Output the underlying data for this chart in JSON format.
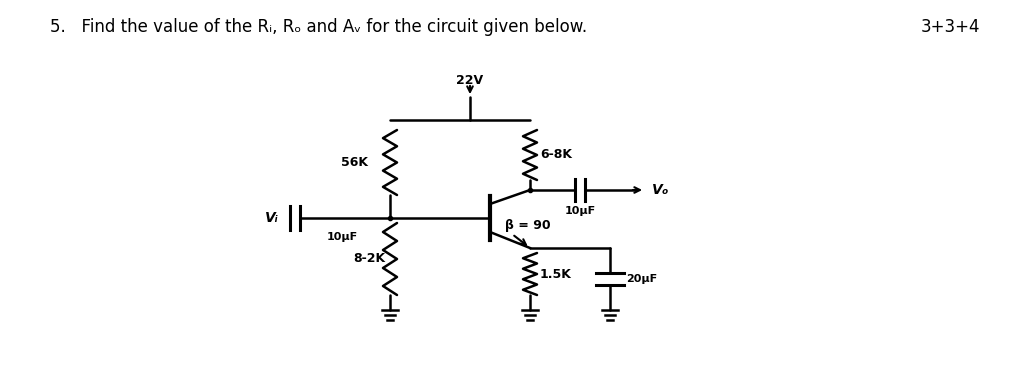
{
  "bg_color": "#ffffff",
  "title_fontsize": 12,
  "fig_width": 10.24,
  "fig_height": 3.66,
  "dpi": 100,
  "title": "5.   Find the value of the R",
  "title_sub": "i",
  "marks": "3+3+4",
  "circuit": {
    "vcc_label": "22V",
    "r1_label": "56K",
    "r2_label": "6-8K",
    "r3_label": "8-2K",
    "r4_label": "1.5K",
    "c1_label": "10μF",
    "c2_label": "10μF",
    "c3_label": "20μF",
    "beta_label": "β = 90",
    "vi_label": "Vᵢ",
    "vo_label": "Vₒ"
  }
}
